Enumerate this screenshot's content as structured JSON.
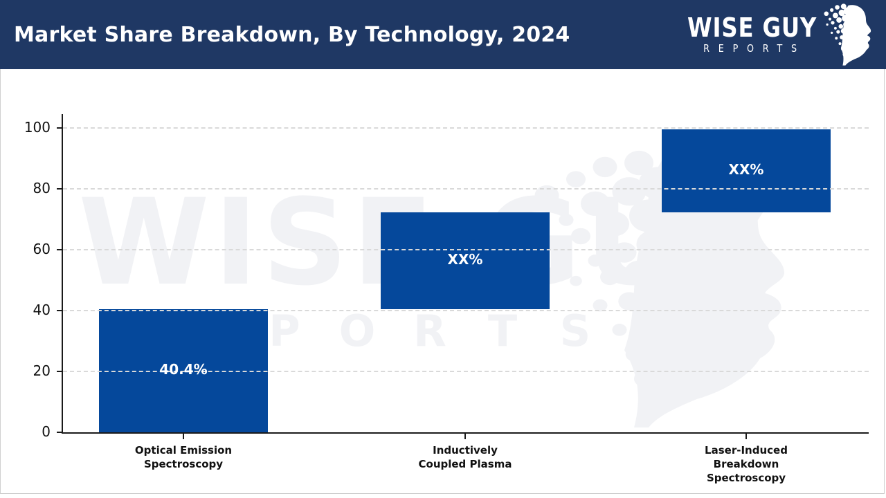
{
  "header": {
    "title": "Market Share Breakdown, By Technology, 2024",
    "logo_line1": "WISE GUY",
    "logo_line2": "REPORTS",
    "bg_color": "#1F3864"
  },
  "watermark": {
    "line1": "WISE GUY",
    "line2": "REPORTS"
  },
  "chart_data": {
    "type": "bar",
    "variant": "floating-waterfall",
    "title": "Market Share Breakdown, By Technology, 2024",
    "xlabel": "",
    "ylabel": "",
    "ylim": [
      0,
      105
    ],
    "yticks": [
      0,
      20,
      40,
      60,
      80,
      100
    ],
    "grid": "horizontal-dashed",
    "legend": "none",
    "bar_color": "#05489B",
    "categories": [
      "Optical Emission Spectroscopy",
      "Inductively Coupled Plasma",
      "Laser-Induced Breakdown Spectroscopy"
    ],
    "segments": [
      {
        "category": "Optical Emission Spectroscopy",
        "category_lines": [
          "Optical Emission",
          "Spectroscopy"
        ],
        "start": 0,
        "end": 40.4,
        "label": "40.4%"
      },
      {
        "category": "Inductively Coupled Plasma",
        "category_lines": [
          "Inductively",
          "Coupled Plasma"
        ],
        "start": 40.4,
        "end": 72.3,
        "label": "XX%"
      },
      {
        "category": "Laser-Induced Breakdown Spectroscopy",
        "category_lines": [
          "Laser-Induced",
          "Breakdown",
          "Spectroscopy"
        ],
        "start": 72.3,
        "end": 99.6,
        "label": "XX%"
      }
    ]
  }
}
